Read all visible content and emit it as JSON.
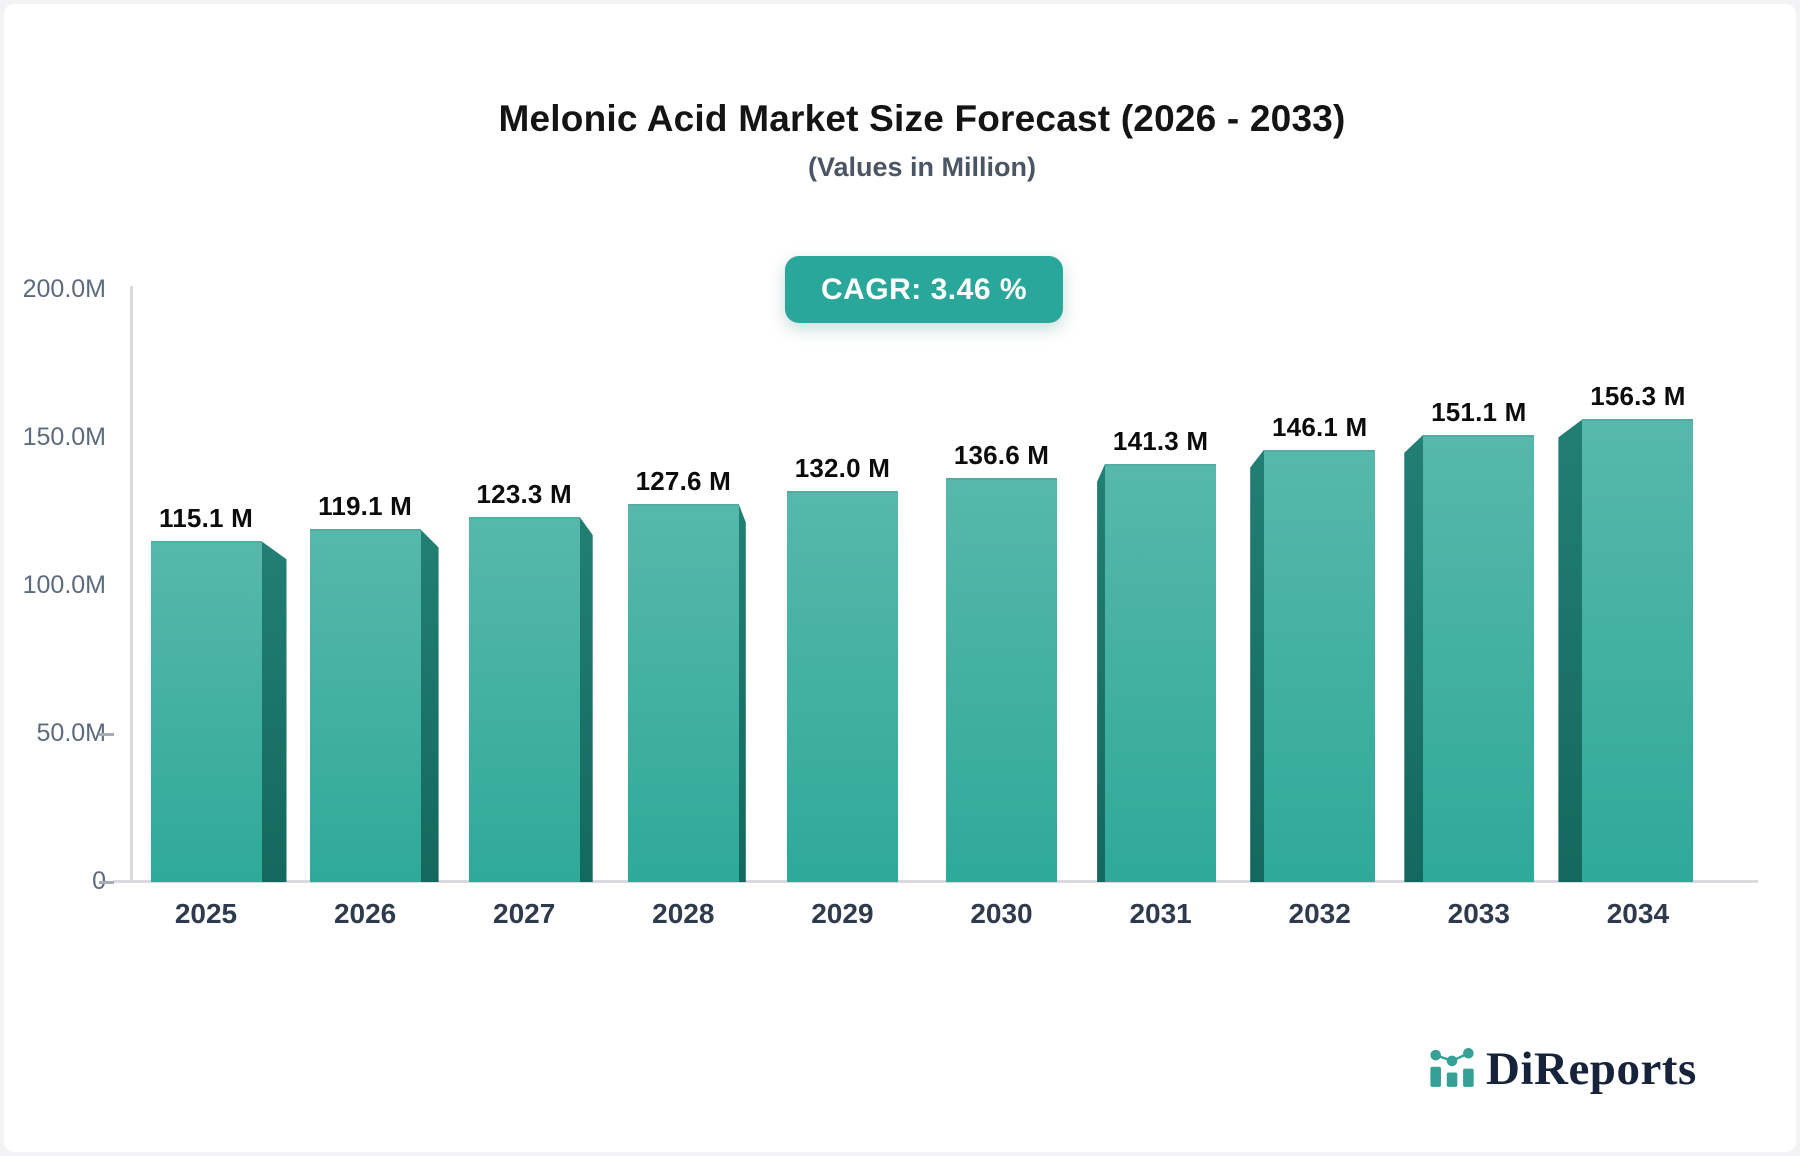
{
  "header": {
    "title": "Melonic Acid Market Size Forecast (2026 - 2033)",
    "subtitle": "(Values in Million)",
    "cagr_badge": "CAGR: 3.46 %"
  },
  "colors": {
    "badge_bg": "#2aa79b",
    "bar_top": "#57b8ab",
    "bar_bottom": "#2ea99a",
    "bar_side": "#1d7268",
    "axis_line": "#d9d9de",
    "y_label": "#5c6c7e",
    "x_label": "#2f3b4c",
    "logo_teal": "#35a096",
    "logo_navy": "#16233b"
  },
  "chart_data": {
    "type": "bar",
    "title": "Melonic Acid Market Size Forecast (2026 - 2033)",
    "subtitle": "(Values in Million)",
    "categories": [
      "2025",
      "2026",
      "2027",
      "2028",
      "2029",
      "2030",
      "2031",
      "2032",
      "2033",
      "2034"
    ],
    "values": [
      115.1,
      119.1,
      123.3,
      127.6,
      132.0,
      136.6,
      141.3,
      146.1,
      151.1,
      156.3
    ],
    "value_labels": [
      "115.1 M",
      "119.1 M",
      "123.3 M",
      "127.6 M",
      "132.0 M",
      "136.6 M",
      "141.3 M",
      "146.1 M",
      "151.1 M",
      "156.3 M"
    ],
    "unit": "M",
    "cagr_percent": 3.46,
    "ylim": [
      0,
      200
    ],
    "y_ticks": [
      {
        "label": "200.0M",
        "value": 200
      },
      {
        "label": "150.0M",
        "value": 150
      },
      {
        "label": "100.0M",
        "value": 100
      },
      {
        "label": "50.0M",
        "value": 50
      },
      {
        "label": "0",
        "value": 0
      }
    ],
    "grid": false,
    "legend": "none",
    "style": "3d-perspective-bars"
  },
  "footer": {
    "logo_text": "DiReports"
  }
}
